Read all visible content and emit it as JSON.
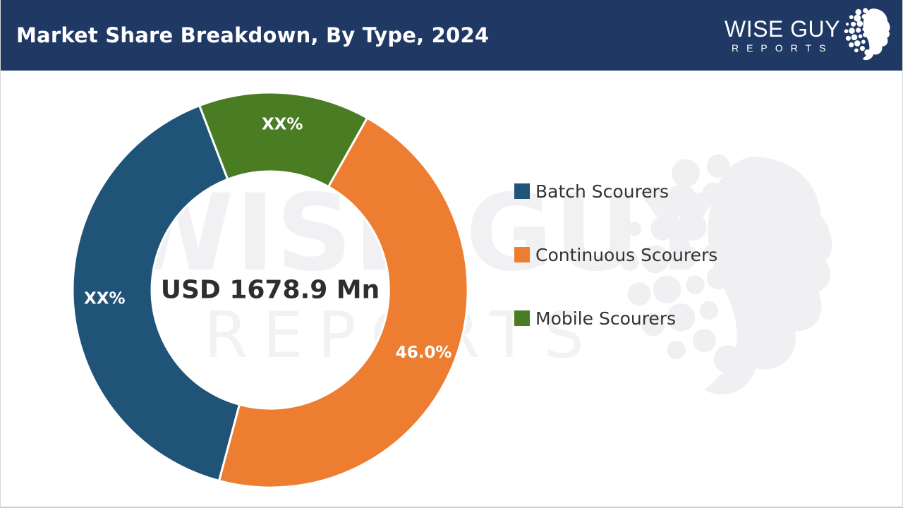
{
  "header": {
    "title": "Market Share Breakdown, By Type, 2024",
    "background_color": "#203864",
    "logo": {
      "wordmark": "WISE GUY",
      "subtext": "REPORTS"
    }
  },
  "watermark": {
    "line1": "WISE GUY",
    "line2": "REPORTS"
  },
  "chart_data": {
    "type": "pie",
    "subtype": "donut",
    "title": "Market Share Breakdown, By Type, 2024",
    "center_label": "USD 1678.9 Mn",
    "inner_radius_ratio": 0.6,
    "start_angle_deg": 111,
    "direction": "counterclockwise",
    "legend_position": "right",
    "grid": false,
    "slices": [
      {
        "label": "Batch Scourers",
        "display_label": "XX%",
        "value_pct": 40,
        "color": "#1f5377"
      },
      {
        "label": "Continuous Scourers",
        "display_label": "46.0%",
        "value_pct": 46,
        "color": "#ed7e31"
      },
      {
        "label": "Mobile Scourers",
        "display_label": "XX%",
        "value_pct": 14,
        "color": "#4a7c23"
      }
    ]
  }
}
